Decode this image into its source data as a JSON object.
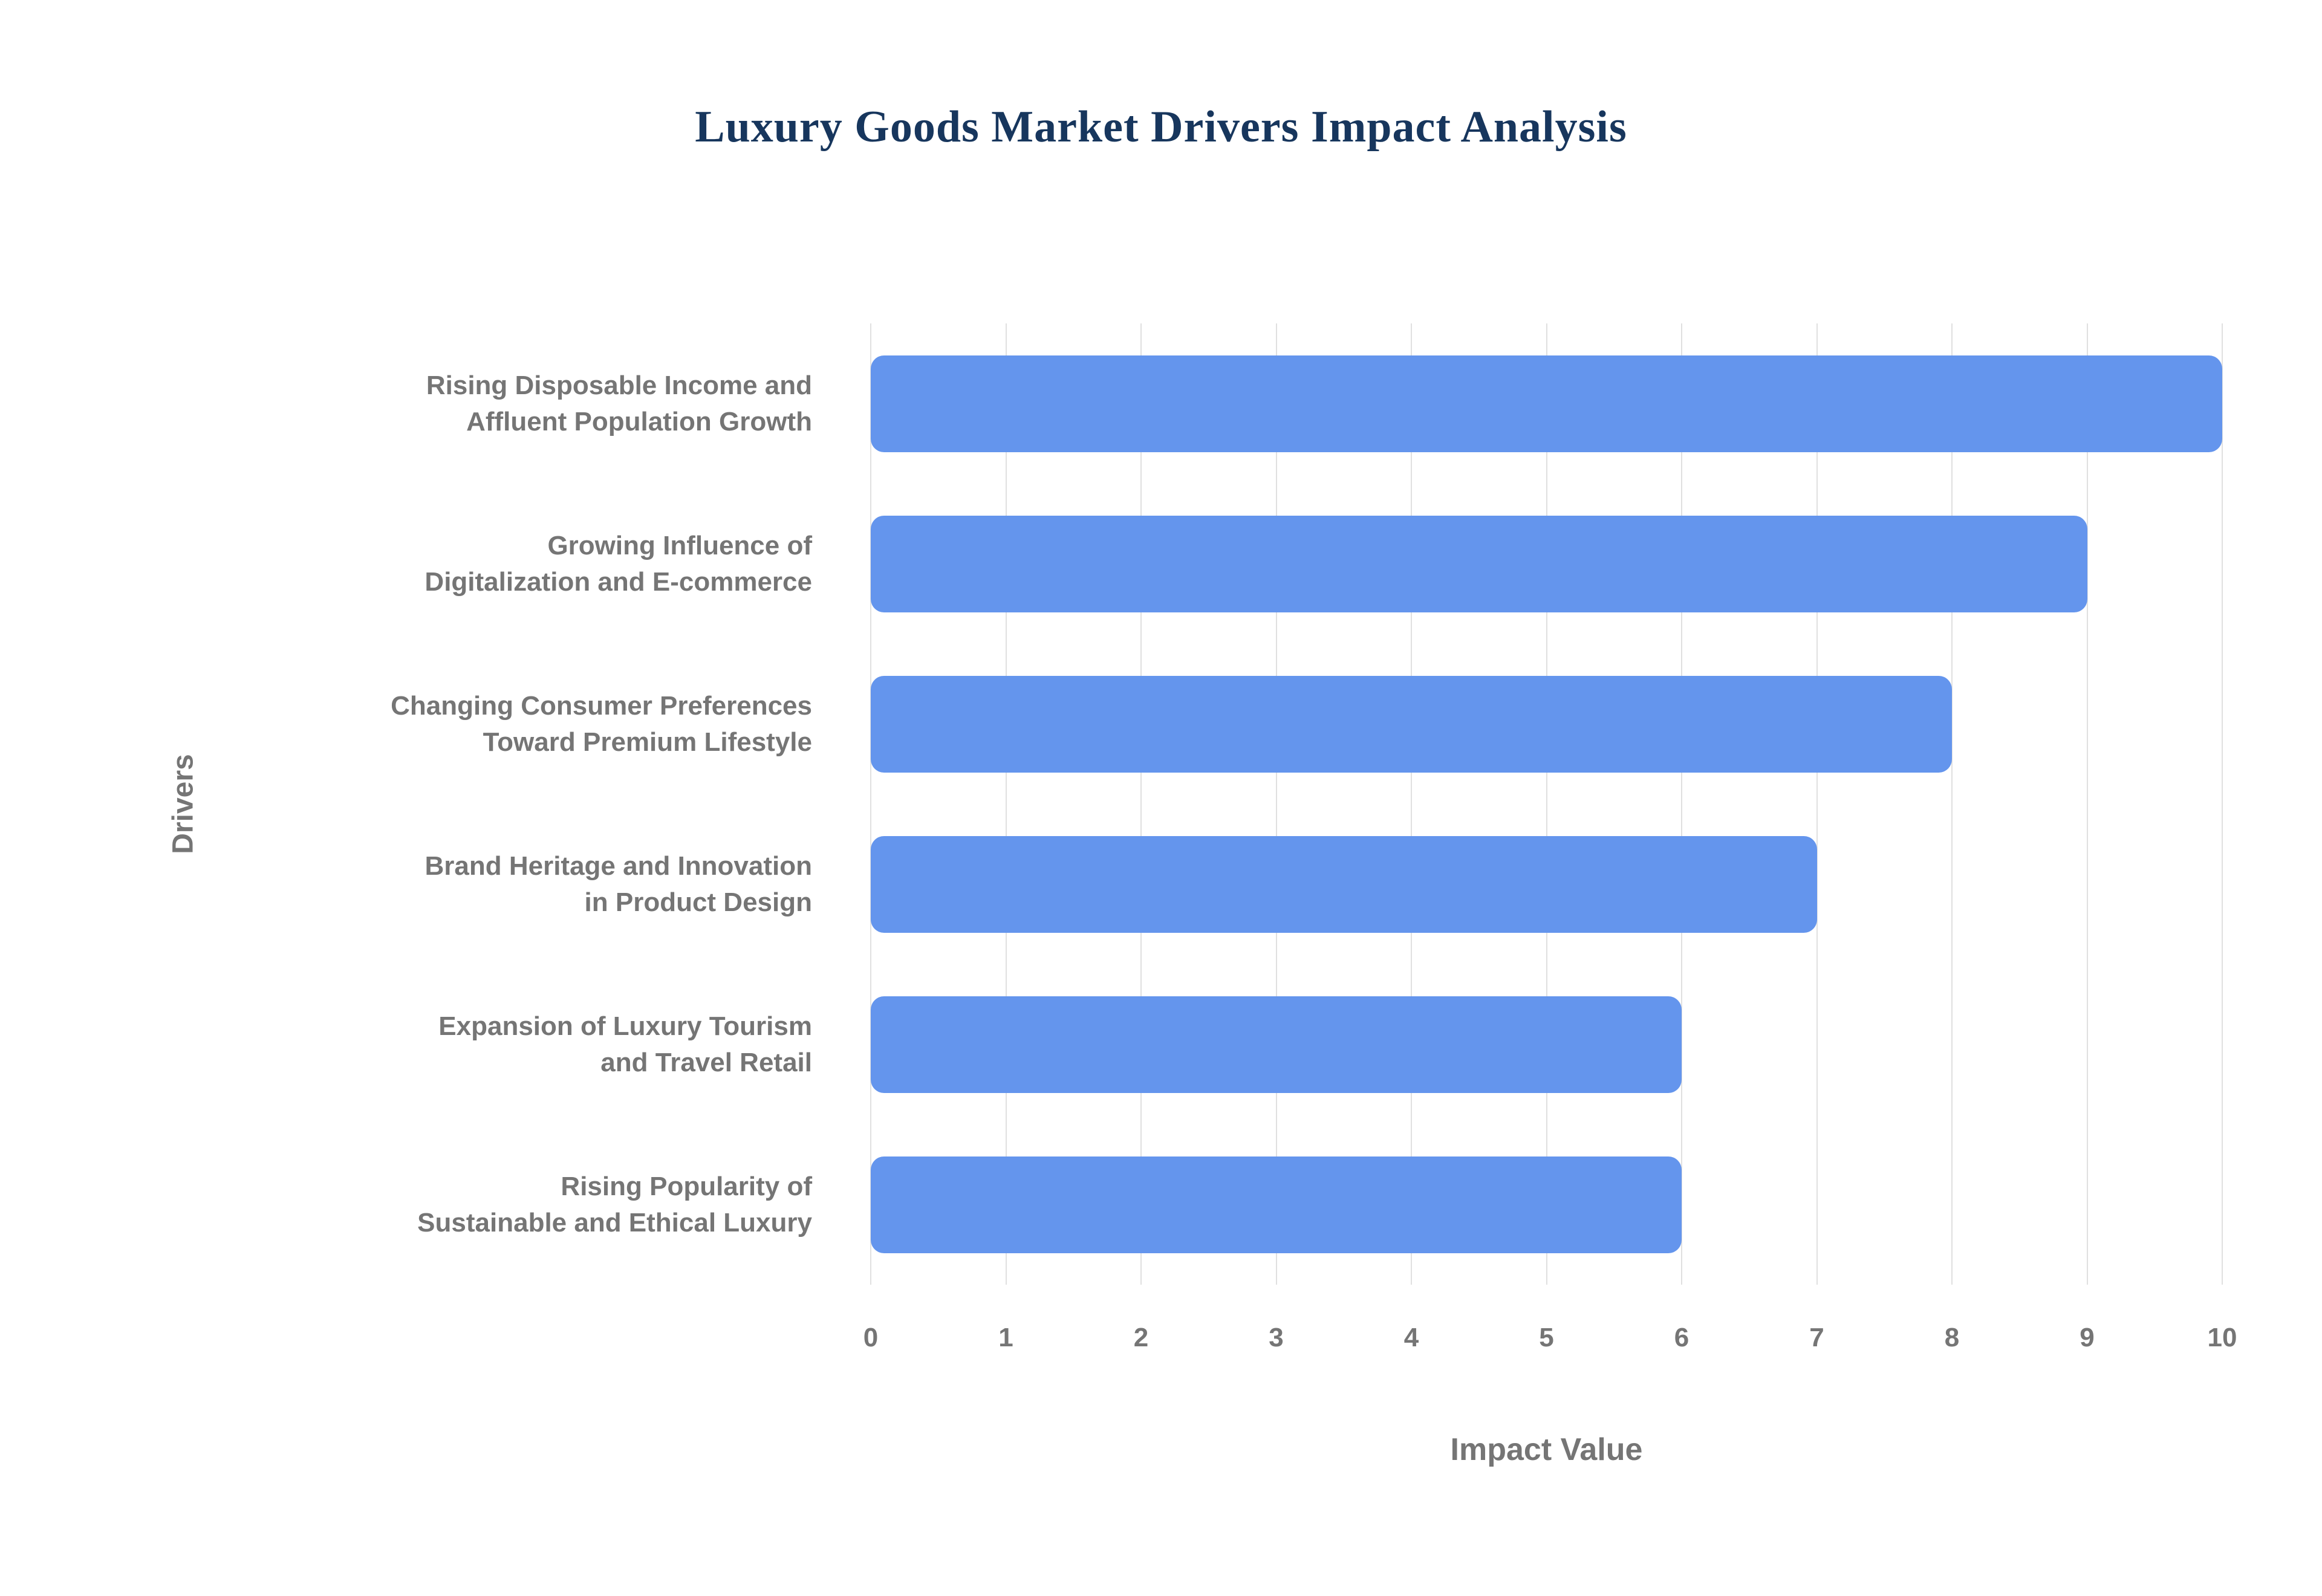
{
  "chart_data": {
    "type": "bar",
    "orientation": "horizontal",
    "title": "Luxury Goods Market Drivers Impact Analysis",
    "categories": [
      "Rising Disposable Income and Affluent Population Growth",
      "Growing Influence of Digitalization and E-commerce",
      "Changing Consumer Preferences Toward Premium Lifestyle",
      "Brand Heritage and Innovation in Product Design",
      "Expansion of Luxury Tourism and Travel Retail",
      "Rising Popularity of Sustainable and Ethical Luxury"
    ],
    "category_lines": [
      [
        "Rising Disposable Income and",
        "Affluent Population Growth"
      ],
      [
        "Growing Influence of",
        "Digitalization and E-commerce"
      ],
      [
        "Changing Consumer Preferences",
        "Toward Premium Lifestyle"
      ],
      [
        "Brand Heritage and Innovation",
        "in Product Design"
      ],
      [
        "Expansion of Luxury Tourism",
        "and Travel Retail"
      ],
      [
        "Rising Popularity of",
        "Sustainable and Ethical Luxury"
      ]
    ],
    "values": [
      10,
      9,
      8,
      7,
      6,
      6
    ],
    "xlabel": "Impact Value",
    "ylabel": "Drivers",
    "xlim": [
      0,
      10
    ],
    "x_ticks": [
      0,
      1,
      2,
      3,
      4,
      5,
      6,
      7,
      8,
      9,
      10
    ],
    "grid": true,
    "legend": "none",
    "bar_color": "#6495ed",
    "grid_color": "#e0e0e0",
    "title_color": "#17365d",
    "axis_text_color": "#757575",
    "background_color": "#ffffff"
  }
}
